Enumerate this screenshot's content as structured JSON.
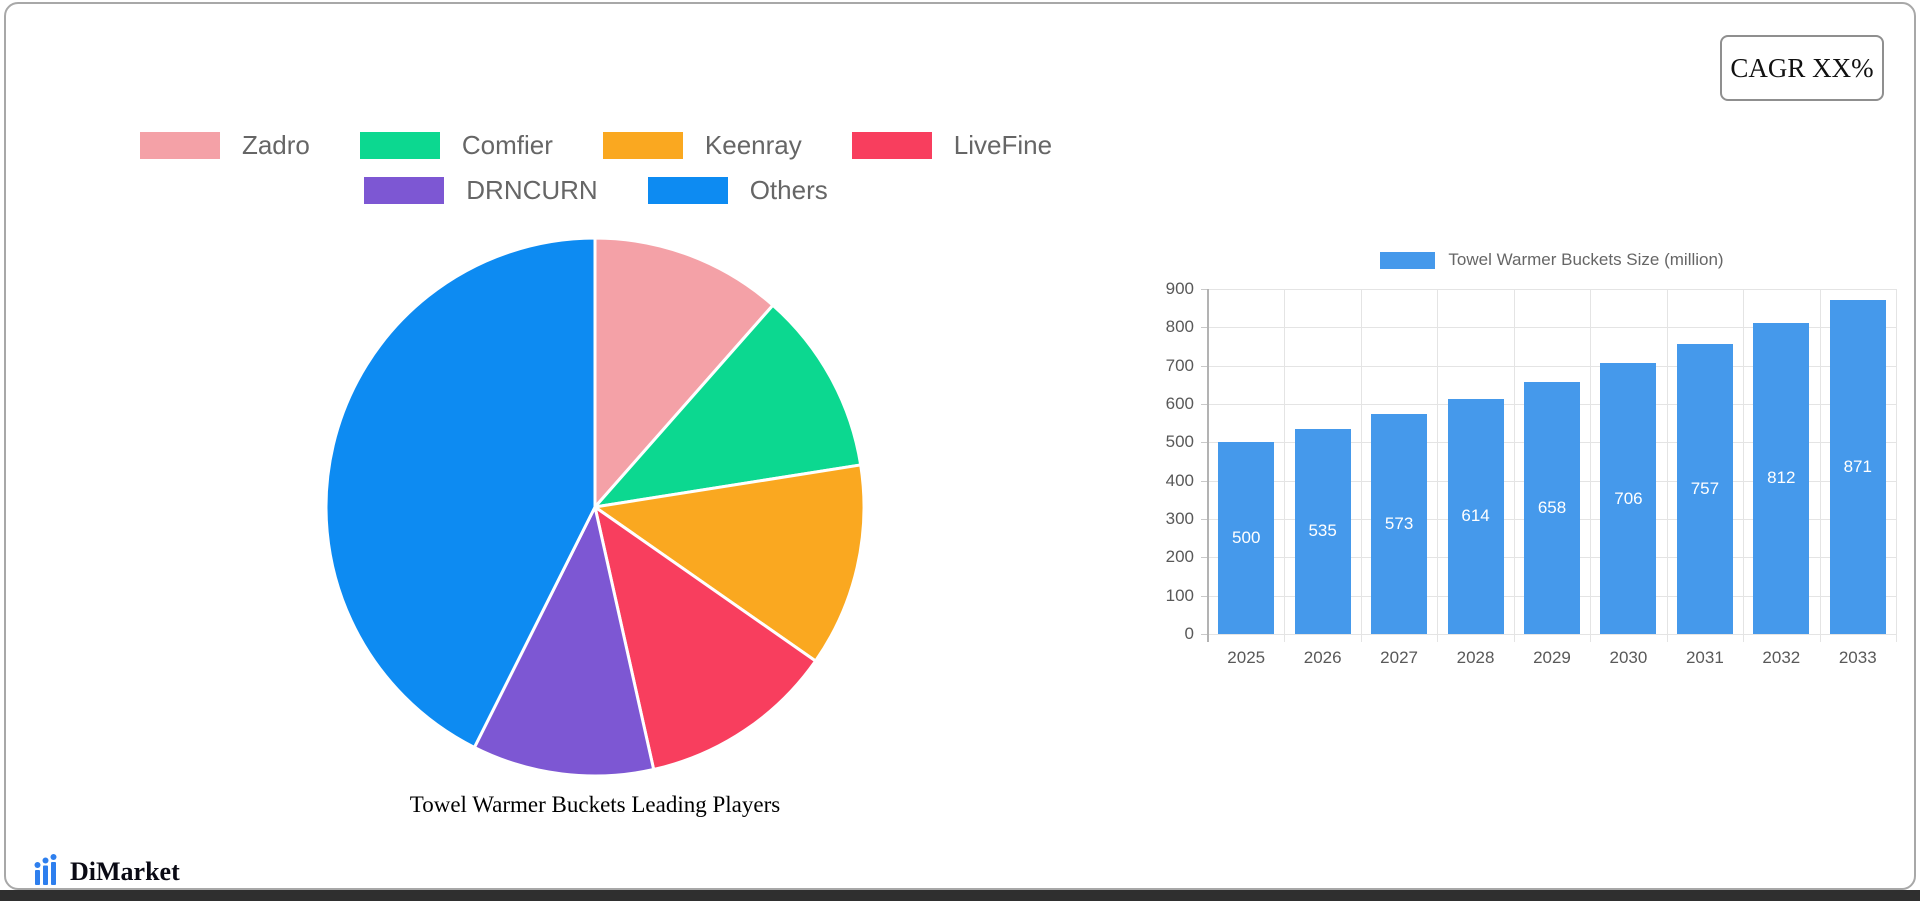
{
  "cagr_box": {
    "label": "CAGR XX%"
  },
  "branding": {
    "name": "DiMarket",
    "logo_icon": "bar-chart-icon",
    "logo_color": "#2e7fee"
  },
  "chart_data": [
    {
      "type": "pie",
      "title": "Towel Warmer Buckets Leading Players",
      "labels": [
        "Zadro",
        "Comfier",
        "Keenray",
        "LiveFine",
        "DRNCURN",
        "Others"
      ],
      "values": [
        11.5,
        11.0,
        12.2,
        11.8,
        10.9,
        42.6
      ],
      "unit": "percent share (estimated from slice angles)",
      "colors": [
        "#f4a1a7",
        "#0cd890",
        "#faa820",
        "#f83e5e",
        "#7d57d3",
        "#0d8bf2"
      ],
      "legend_position": "top",
      "legend_rows": [
        4,
        2
      ],
      "start_angle_deg": 0,
      "direction": "clockwise"
    },
    {
      "type": "bar",
      "series_label": "Towel Warmer Buckets Size (million)",
      "categories": [
        "2025",
        "2026",
        "2027",
        "2028",
        "2029",
        "2030",
        "2031",
        "2032",
        "2033"
      ],
      "values": [
        500,
        535,
        573,
        614,
        658,
        706,
        757,
        812,
        871
      ],
      "bar_color": "#4599eb",
      "value_label_color": "#ffffff",
      "ylim": [
        0,
        900
      ],
      "ytick_step": 100,
      "grid": true,
      "legend_position": "top"
    }
  ]
}
